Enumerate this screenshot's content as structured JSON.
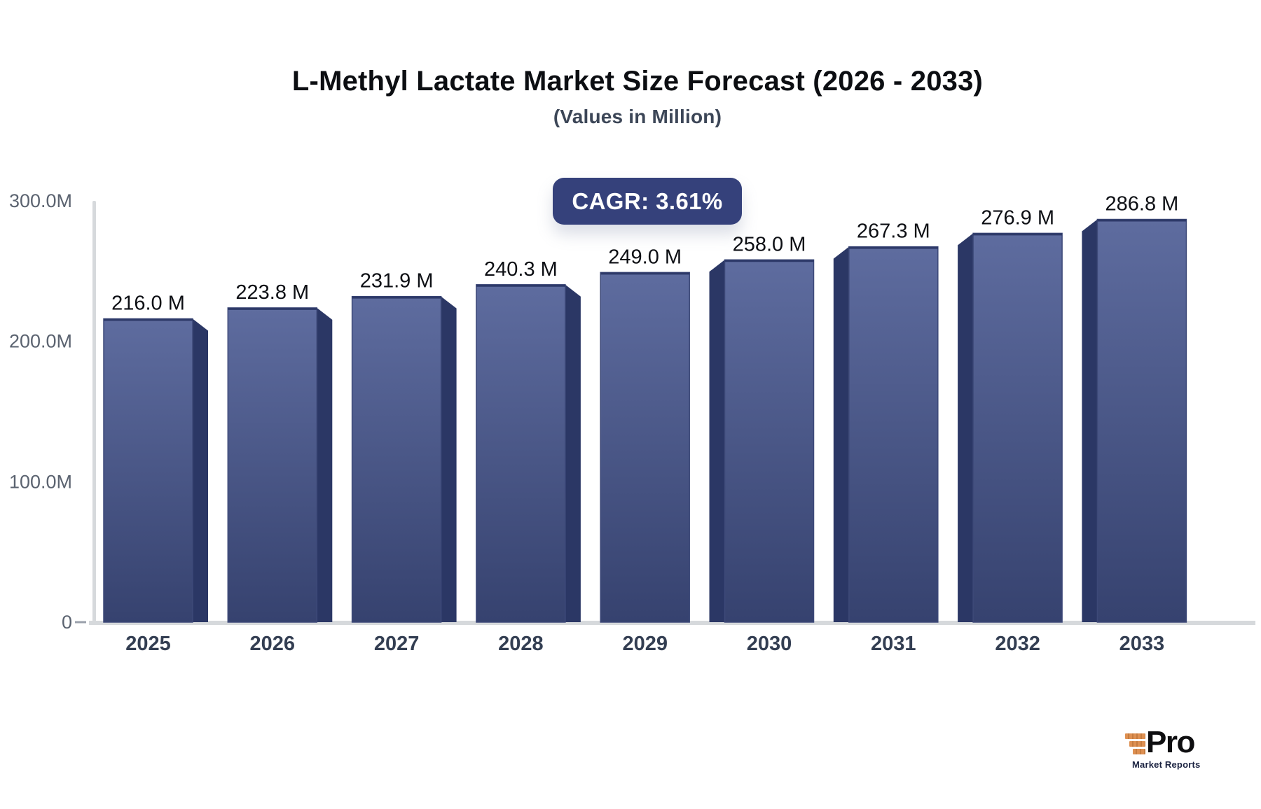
{
  "header": {
    "title": "L-Methyl Lactate Market Size Forecast (2026 - 2033)",
    "subtitle": "(Values in Million)"
  },
  "badge": {
    "label": "CAGR: 3.61%",
    "bg": "#35417b",
    "text_color": "#ffffff"
  },
  "chart_data": {
    "type": "bar",
    "title": "L-Methyl Lactate Market Size Forecast (2026 - 2033)",
    "subtitle": "(Values in Million)",
    "cagr_percent": 3.61,
    "categories": [
      "2025",
      "2026",
      "2027",
      "2028",
      "2029",
      "2030",
      "2031",
      "2032",
      "2033"
    ],
    "values": [
      216.0,
      223.8,
      231.9,
      240.3,
      249.0,
      258.0,
      267.3,
      276.9,
      286.8
    ],
    "value_labels": [
      "216.0 M",
      "223.8 M",
      "231.9 M",
      "240.3 M",
      "249.0 M",
      "258.0 M",
      "267.3 M",
      "276.9 M",
      "286.8 M"
    ],
    "y_ticks": [
      {
        "label": "300.0M",
        "value": 300,
        "dash": false
      },
      {
        "label": "200.0M",
        "value": 200,
        "dash": false
      },
      {
        "label": "100.0M",
        "value": 100,
        "dash": false
      },
      {
        "label": "0",
        "value": 0,
        "dash": true
      }
    ],
    "ylim": [
      0,
      300
    ],
    "grid": false,
    "legend": false,
    "colors": {
      "bar_face_top": "#5e6c9f",
      "bar_face_bottom": "#36426f",
      "bar_side": "#2b3765",
      "bar_edge": "#2d3968",
      "axis": "#d6d9dc",
      "tick_dash": "#9aa0ab",
      "tick_text": "#5b6370",
      "category_text": "#333e52",
      "value_text": "#0d0f14"
    }
  },
  "logo": {
    "brand": "Pro",
    "tagline": "Market Reports",
    "accent": "#de9052",
    "accent_dark": "#c57c40"
  }
}
